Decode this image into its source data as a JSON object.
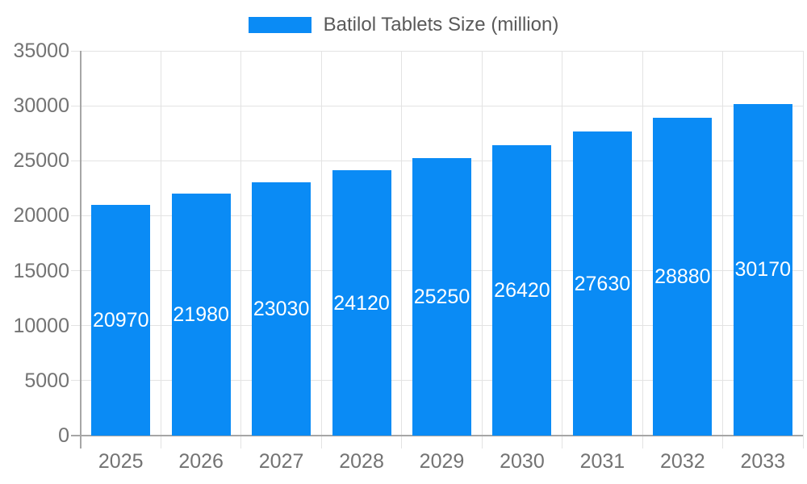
{
  "colors": {
    "bar": "#0a8bf5",
    "grid": "#e3e3e3",
    "axis": "#a6a6a6",
    "tick_label": "#737373",
    "legend_text": "#595959",
    "bar_label": "#ffffff",
    "background": "#ffffff"
  },
  "legend": {
    "position": "top"
  },
  "chart_data": {
    "type": "bar",
    "title": "Batilol Tablets Size (million)",
    "series_name": "Batilol Tablets Size (million)",
    "categories": [
      "2025",
      "2026",
      "2027",
      "2028",
      "2029",
      "2030",
      "2031",
      "2032",
      "2033"
    ],
    "values": [
      20970,
      21980,
      23030,
      24120,
      25250,
      26420,
      27630,
      28880,
      30170
    ],
    "xlabel": "",
    "ylabel": "",
    "ylim": [
      0,
      35000
    ],
    "y_ticks": [
      0,
      5000,
      10000,
      15000,
      20000,
      25000,
      30000,
      35000
    ],
    "grid": true,
    "bar_value_labels": "inside-center",
    "legend_position": "top"
  }
}
